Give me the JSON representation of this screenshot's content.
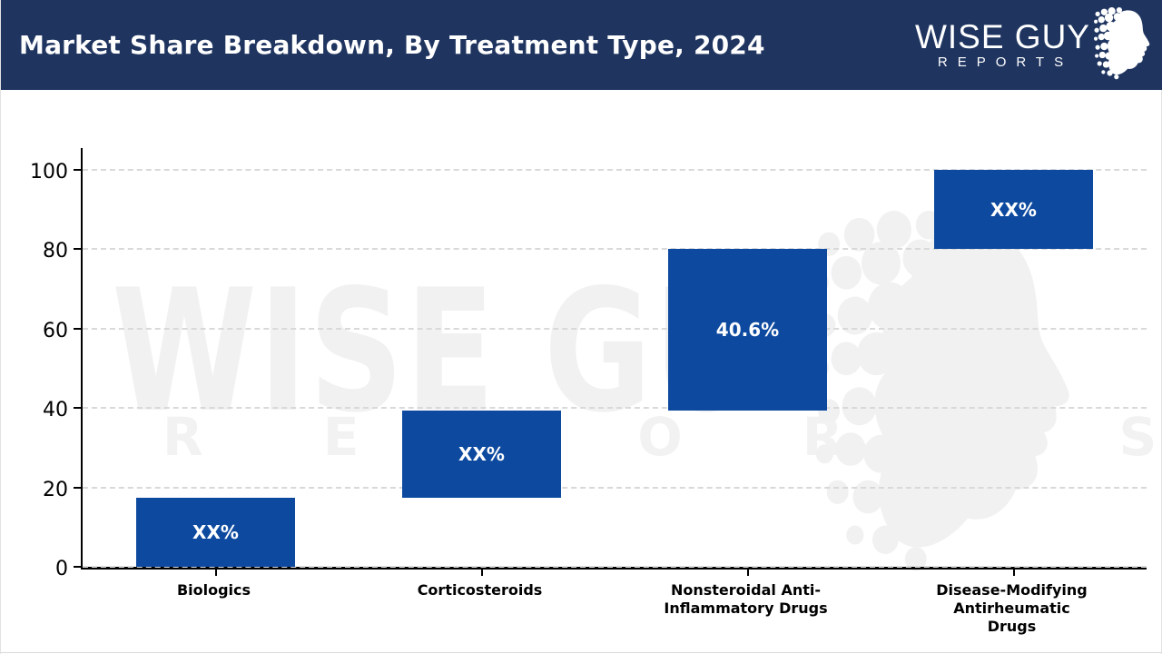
{
  "header": {
    "title": "Market Share Breakdown, By Treatment Type, 2024",
    "logo": {
      "line1": "WISE GUY",
      "line2": "REPORTS"
    }
  },
  "watermark": {
    "line1": "WISE GU",
    "line2": "R E P O R T S"
  },
  "colors": {
    "header_bg": "#1f3560",
    "bar": "#0d4a9f",
    "gridline": "#d9d9d9",
    "axis": "#000000",
    "bar_label_text": "#ffffff",
    "title_text": "#ffffff",
    "watermark": "#f1f1f1"
  },
  "chart_data": {
    "type": "bar",
    "subtype": "waterfall",
    "title": "Market Share Breakdown, By Treatment Type, 2024",
    "xlabel": "",
    "ylabel": "",
    "ylim": [
      0,
      105.5
    ],
    "y_ticks": [
      0,
      20,
      40,
      60,
      80,
      100
    ],
    "grid": "horizontal-dashed",
    "legend": "none",
    "categories": [
      "Biologics",
      "Corticosteroids",
      "Nonsteroidal Anti-\nInflammatory Drugs",
      "Disease-Modifying\nAntirheumatic\nDrugs"
    ],
    "segments": [
      {
        "label": "Biologics",
        "start": 0,
        "end": 17.5,
        "display": "XX%"
      },
      {
        "label": "Corticosteroids",
        "start": 17.5,
        "end": 39.4,
        "display": "XX%"
      },
      {
        "label": "Nonsteroidal Anti-Inflammatory Drugs",
        "start": 39.4,
        "end": 80,
        "display": "40.6%"
      },
      {
        "label": "Disease-Modifying Antirheumatic Drugs",
        "start": 80,
        "end": 100,
        "display": "XX%"
      }
    ]
  }
}
